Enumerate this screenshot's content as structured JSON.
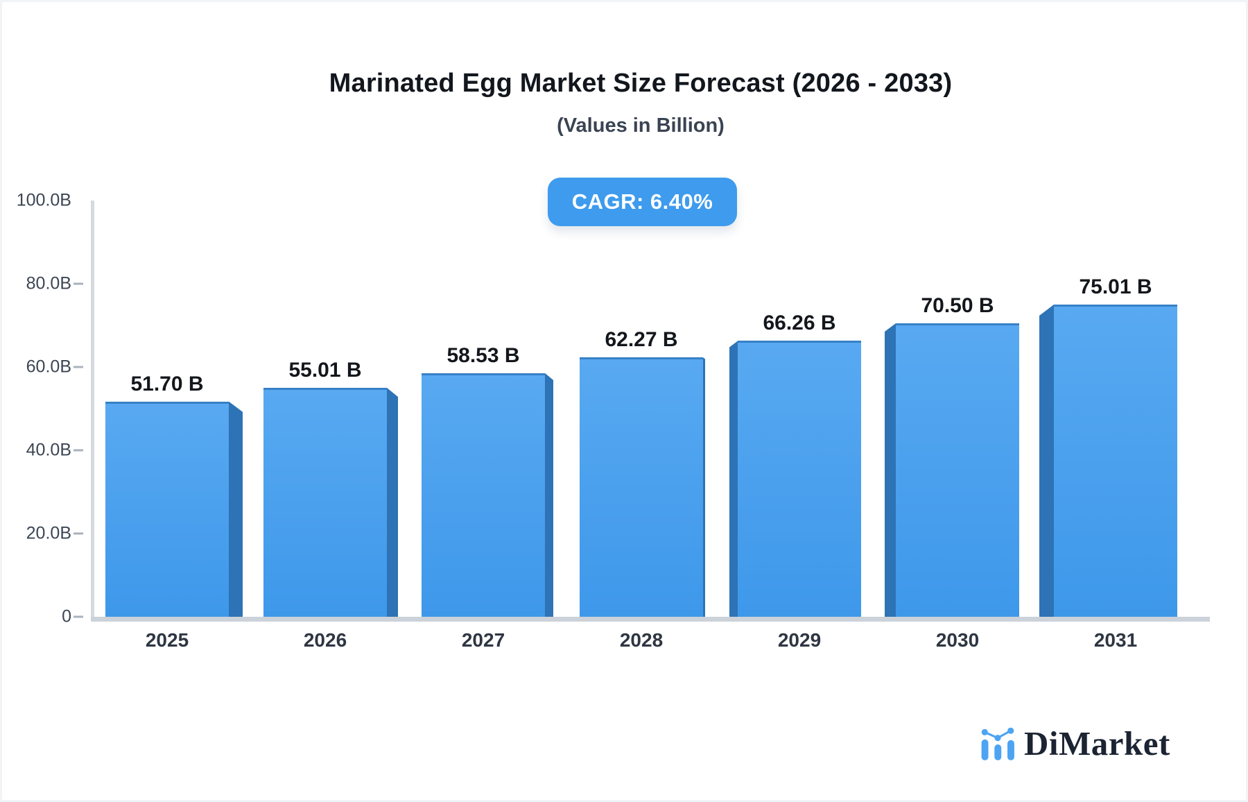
{
  "page": {
    "background": "#ffffff",
    "frame_color": "#f1f4f6"
  },
  "header": {
    "title": "Marinated Egg Market Size Forecast (2026 - 2033)",
    "subtitle": "(Values in Billion)"
  },
  "cagr_badge": {
    "label": "CAGR: 6.40%",
    "bg": "#3e9bed",
    "text_color": "#ffffff"
  },
  "chart_data": {
    "type": "bar",
    "title": "Marinated Egg Market Size Forecast (2026 - 2033)",
    "subtitle": "(Values in Billion)",
    "cagr_annotation": "CAGR: 6.40%",
    "categories": [
      "2025",
      "2026",
      "2027",
      "2028",
      "2029",
      "2030",
      "2031"
    ],
    "values": [
      51.7,
      55.01,
      58.53,
      62.27,
      66.26,
      70.5,
      75.01
    ],
    "value_labels": [
      "51.70 B",
      "55.01 B",
      "58.53 B",
      "62.27 B",
      "66.26 B",
      "70.50 B",
      "75.01 B"
    ],
    "xlabel": "",
    "ylabel": "",
    "ylim": [
      0,
      100
    ],
    "y_ticks": [
      0,
      20,
      40,
      60,
      80,
      100
    ],
    "y_tick_labels": [
      "0",
      "20.0B",
      "40.0B",
      "60.0B",
      "80.0B",
      "100.0B"
    ],
    "grid": false,
    "legend": "none",
    "bar_color_top": "#58a9f1",
    "bar_color_bottom": "#3e98ea",
    "bar_side_color": "#2d73b5"
  },
  "logo": {
    "text": "DiMarket",
    "icon": "bar-chart-trend-icon",
    "icon_color": "#4da4f2",
    "text_color": "#1c2433"
  }
}
